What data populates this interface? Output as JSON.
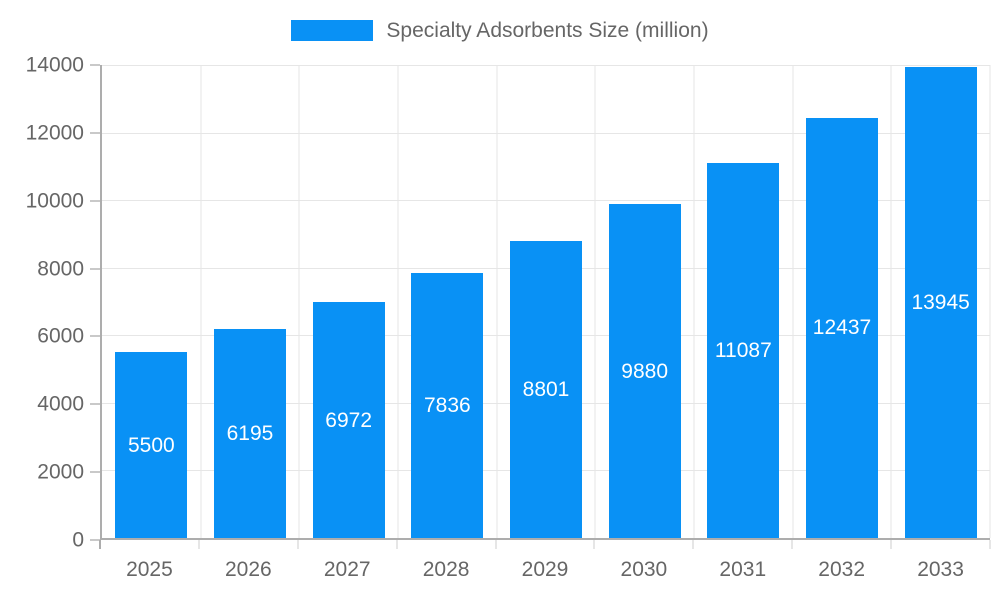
{
  "chart_data": {
    "type": "bar",
    "title": "Specialty Adsorbents Size (million)",
    "categories": [
      "2025",
      "2026",
      "2027",
      "2028",
      "2029",
      "2030",
      "2031",
      "2032",
      "2033"
    ],
    "series": [
      {
        "name": "Specialty Adsorbents Size (million)",
        "values": [
          5500,
          6195,
          6972,
          7836,
          8801,
          9880,
          11087,
          12437,
          13945
        ]
      }
    ],
    "xlabel": "",
    "ylabel": "",
    "ylim": [
      0,
      14000
    ],
    "ytick_step": 2000,
    "grid": true,
    "legend_position": "top-center",
    "value_labels": "inside-center-white",
    "colors": {
      "bar": "#0991F5",
      "bar_label": "#FFFFFF",
      "axis_text": "#666666",
      "grid": "#E6E6E6",
      "axis_line": "#ADADAD",
      "tick": "#C9C9C9"
    }
  }
}
